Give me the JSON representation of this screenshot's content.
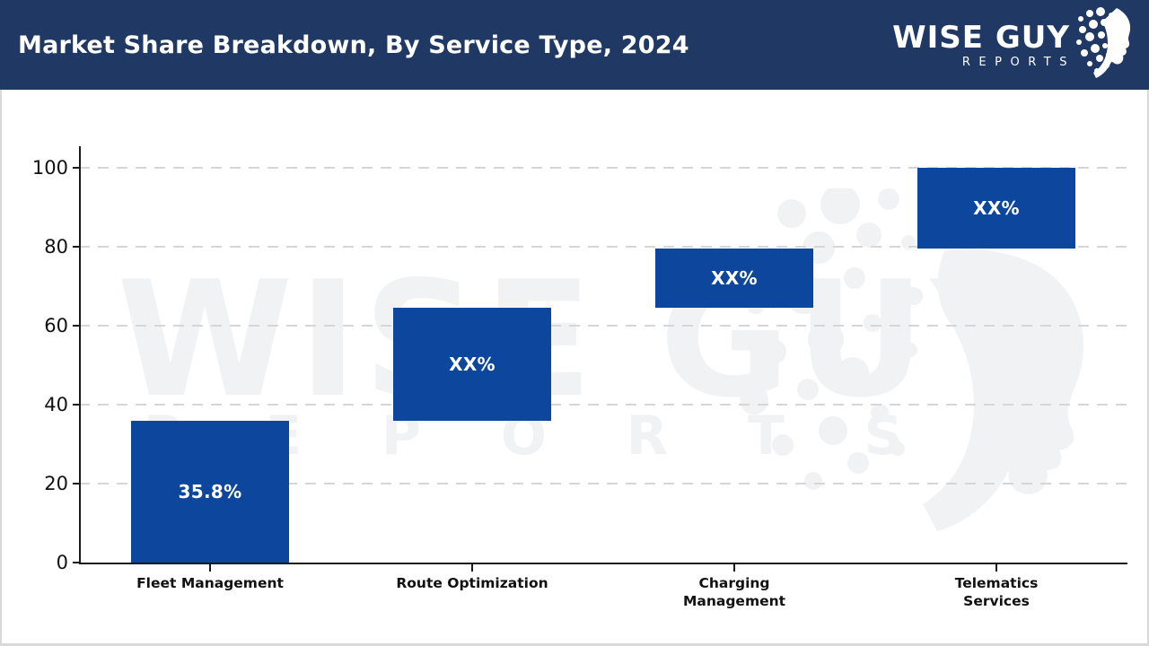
{
  "header": {
    "title": "Market Share Breakdown, By Service Type, 2024",
    "logo": {
      "line1": "WISE GUY",
      "line2": "REPORTS"
    }
  },
  "watermark": {
    "line1": "WISE GUY",
    "line2": "R E P O R T S"
  },
  "colors": {
    "header_navy": "#1f3864",
    "bar_blue": "#0c469d",
    "grid_gray": "#d6d6d6",
    "axis_black": "#1a1a1a",
    "watermark_gray": "#f1f2f4",
    "label_white": "#ffffff"
  },
  "chart_data": {
    "type": "bar",
    "subtype": "floating-waterfall",
    "title": "Market Share Breakdown, By Service Type, 2024",
    "categories": [
      [
        "Fleet Management"
      ],
      [
        "Route Optimization"
      ],
      [
        "Charging",
        "Management"
      ],
      [
        "Telematics",
        "Services"
      ]
    ],
    "bars": [
      {
        "category": "Fleet Management",
        "start": 0,
        "end": 35.8,
        "label": "35.8%"
      },
      {
        "category": "Route Optimization",
        "start": 35.8,
        "end": 64.5,
        "label": "XX%"
      },
      {
        "category": "Charging Management",
        "start": 64.5,
        "end": 79.5,
        "label": "XX%"
      },
      {
        "category": "Telematics Services",
        "start": 79.5,
        "end": 100,
        "label": "XX%"
      }
    ],
    "yticks": [
      0,
      20,
      40,
      60,
      80,
      100
    ],
    "ylim": [
      0,
      105
    ],
    "xlabel": "",
    "ylabel": "",
    "grid": "horizontal-dashed",
    "legend": "none"
  }
}
